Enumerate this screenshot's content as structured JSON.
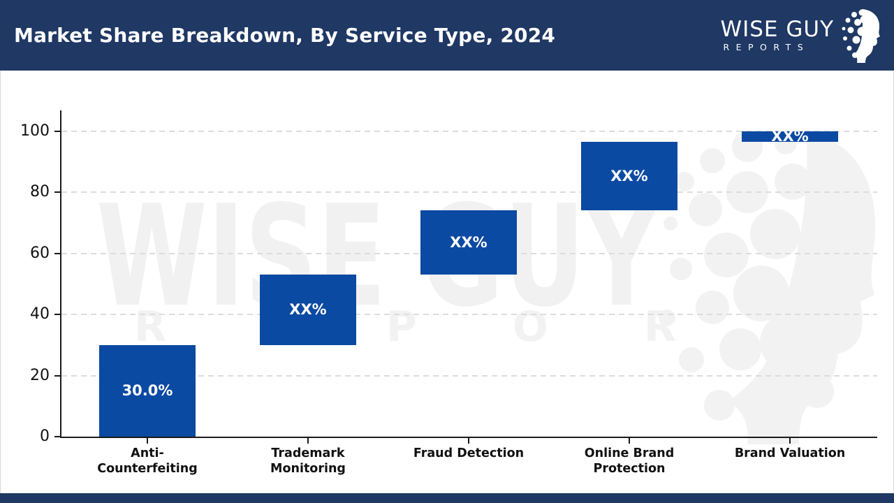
{
  "header": {
    "title": "Market Share Breakdown, By Service Type, 2024",
    "logo": {
      "brand": "WISE GUY",
      "sub": "REPORTS"
    }
  },
  "watermark": {
    "line1": "WISE GUY",
    "line2": "R E P O R T S"
  },
  "colors": {
    "header_bg": "#1f3864",
    "footer_bg": "#1f3864",
    "bar": "#0b4aa2",
    "grid": "#dcdcdc",
    "axis": "#1a1a1a",
    "tick_text": "#111111",
    "value_text": "#ffffff",
    "watermark": "#f1f1f1"
  },
  "chart_data": {
    "type": "bar",
    "subtype": "waterfall",
    "title": "Market Share Breakdown, By Service Type, 2024",
    "xlabel": "",
    "ylabel": "",
    "ylim": [
      0,
      106
    ],
    "yticks": [
      0,
      20,
      40,
      60,
      80,
      100
    ],
    "grid": "horizontal-dashed",
    "legend": "none",
    "categories": [
      "Anti-Counterfeiting",
      "Trademark Monitoring",
      "Fraud Detection",
      "Online Brand Protection",
      "Brand Valuation"
    ],
    "bars": [
      {
        "category_lines": [
          "Anti-",
          "Counterfeiting"
        ],
        "start": 0,
        "end": 30,
        "segment_value": 30,
        "value_label": "30.0%"
      },
      {
        "category_lines": [
          "Trademark",
          "Monitoring"
        ],
        "start": 30,
        "end": 53,
        "segment_value": 23,
        "value_label": "XX%"
      },
      {
        "category_lines": [
          "Fraud Detection"
        ],
        "start": 53,
        "end": 74,
        "segment_value": 21,
        "value_label": "XX%"
      },
      {
        "category_lines": [
          "Online Brand",
          "Protection"
        ],
        "start": 74,
        "end": 96.5,
        "segment_value": 22.5,
        "value_label": "XX%"
      },
      {
        "category_lines": [
          "Brand Valuation"
        ],
        "start": 96.5,
        "end": 100,
        "segment_value": 3.5,
        "value_label": "XX%"
      }
    ]
  }
}
